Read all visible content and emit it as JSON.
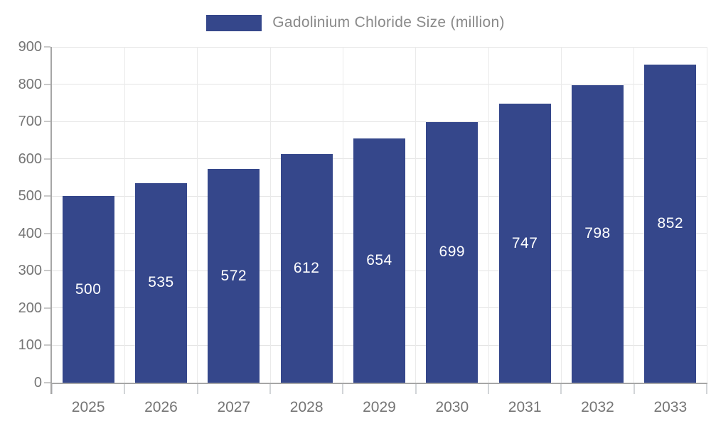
{
  "chart_data": {
    "type": "bar",
    "categories": [
      "2025",
      "2026",
      "2027",
      "2028",
      "2029",
      "2030",
      "2031",
      "2032",
      "2033"
    ],
    "values": [
      500,
      535,
      572,
      612,
      654,
      699,
      747,
      798,
      852
    ],
    "series": [
      {
        "name": "Gadolinium Chloride Size (million)",
        "values": [
          500,
          535,
          572,
          612,
          654,
          699,
          747,
          798,
          852
        ]
      }
    ],
    "title": "",
    "xlabel": "",
    "ylabel": "",
    "ylim": [
      0,
      900
    ],
    "ytick_step": 100,
    "ytick_labels": [
      "0",
      "100",
      "200",
      "300",
      "400",
      "500",
      "600",
      "700",
      "800",
      "900"
    ],
    "grid": true,
    "legend_position": "top-center",
    "legend_label": "Gadolinium Chloride Size (million)",
    "colors": {
      "bar_fill": "#35478B",
      "value_label": "#ffffff",
      "axis_line": "#a6a6a6",
      "tick_label": "#757575",
      "legend_text": "#8a8a8a",
      "gridline_h": "#e4e4e4",
      "gridline_v": "#eaeaea"
    }
  }
}
